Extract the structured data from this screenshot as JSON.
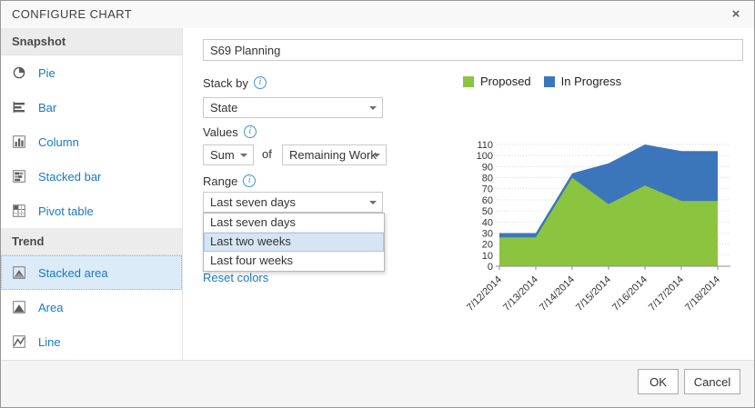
{
  "dialog": {
    "title": "CONFIGURE CHART",
    "close_icon": "×",
    "ok_label": "OK",
    "cancel_label": "Cancel"
  },
  "sidebar": {
    "sections": [
      {
        "header": "Snapshot",
        "items": [
          {
            "label": "Pie",
            "icon": "pie-icon"
          },
          {
            "label": "Bar",
            "icon": "bar-icon"
          },
          {
            "label": "Column",
            "icon": "column-icon"
          },
          {
            "label": "Stacked bar",
            "icon": "stacked-bar-icon"
          },
          {
            "label": "Pivot table",
            "icon": "pivot-table-icon"
          }
        ]
      },
      {
        "header": "Trend",
        "items": [
          {
            "label": "Stacked area",
            "icon": "stacked-area-icon",
            "selected": true
          },
          {
            "label": "Area",
            "icon": "area-icon"
          },
          {
            "label": "Line",
            "icon": "line-icon"
          }
        ]
      }
    ]
  },
  "form": {
    "name_value": "S69 Planning",
    "stack_by": {
      "label": "Stack by",
      "value": "State"
    },
    "values": {
      "label": "Values",
      "aggregation": "Sum",
      "of_label": "of",
      "field": "Remaining Work"
    },
    "range": {
      "label": "Range",
      "value": "Last seven days",
      "options": [
        "Last seven days",
        "Last two weeks",
        "Last four weeks"
      ],
      "highlighted_option": "Last two weeks"
    },
    "reset_colors_label": "Reset colors"
  },
  "colors": {
    "link_blue": "#1779c4",
    "selection_bg": "#dcebf8",
    "option_highlight_bg": "#d6e5f3"
  },
  "chart_data": {
    "type": "area",
    "stacked": true,
    "x": [
      "7/12/2014",
      "7/13/2014",
      "7/14/2014",
      "7/15/2014",
      "7/16/2014",
      "7/17/2014",
      "7/18/2014"
    ],
    "series": [
      {
        "name": "Proposed",
        "color": "#8bc43f",
        "values": [
          26,
          26,
          80,
          56,
          73,
          59,
          59
        ]
      },
      {
        "name": "In Progress",
        "color": "#3c76ba",
        "values": [
          4,
          4,
          4,
          37,
          37,
          45,
          45
        ]
      }
    ],
    "ylim": [
      0,
      110
    ],
    "ytick_step": 10,
    "xlabel": "",
    "ylabel": "",
    "grid": "dotted-horizontal",
    "legend_position": "top",
    "x_label_rotation": -45
  }
}
